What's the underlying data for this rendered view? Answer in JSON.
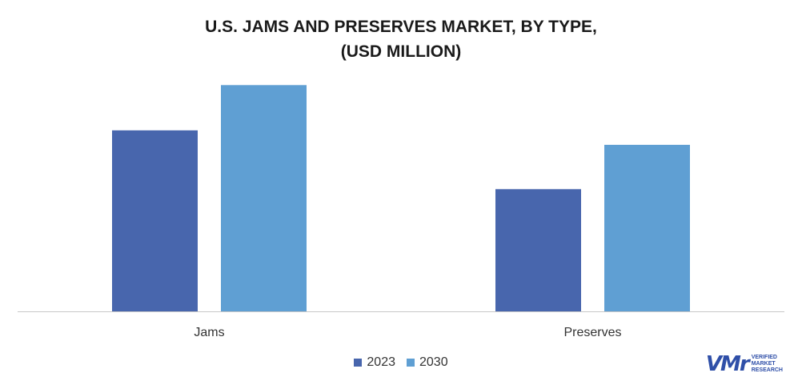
{
  "chart_data": {
    "type": "bar",
    "title_lines": [
      "U.S. JAMS AND PRESERVES MARKET, BY TYPE,",
      "(USD MILLION)"
    ],
    "categories": [
      "Jams",
      "Preserves"
    ],
    "series": [
      {
        "name": "2023",
        "values": [
          100,
          67.5
        ],
        "color": "#4866ad"
      },
      {
        "name": "2030",
        "values": [
          125,
          92
        ],
        "color": "#5f9fd3"
      }
    ],
    "ylim": [
      0,
      130
    ],
    "grid": false,
    "legend_position": "bottom-center",
    "axis_color": "#c8c8c8"
  },
  "branding": {
    "logo_mark": "VMr",
    "logo_lines": [
      "VERIFIED",
      "MARKET",
      "RESEARCH"
    ],
    "logo_color": "#2f4fa8"
  }
}
